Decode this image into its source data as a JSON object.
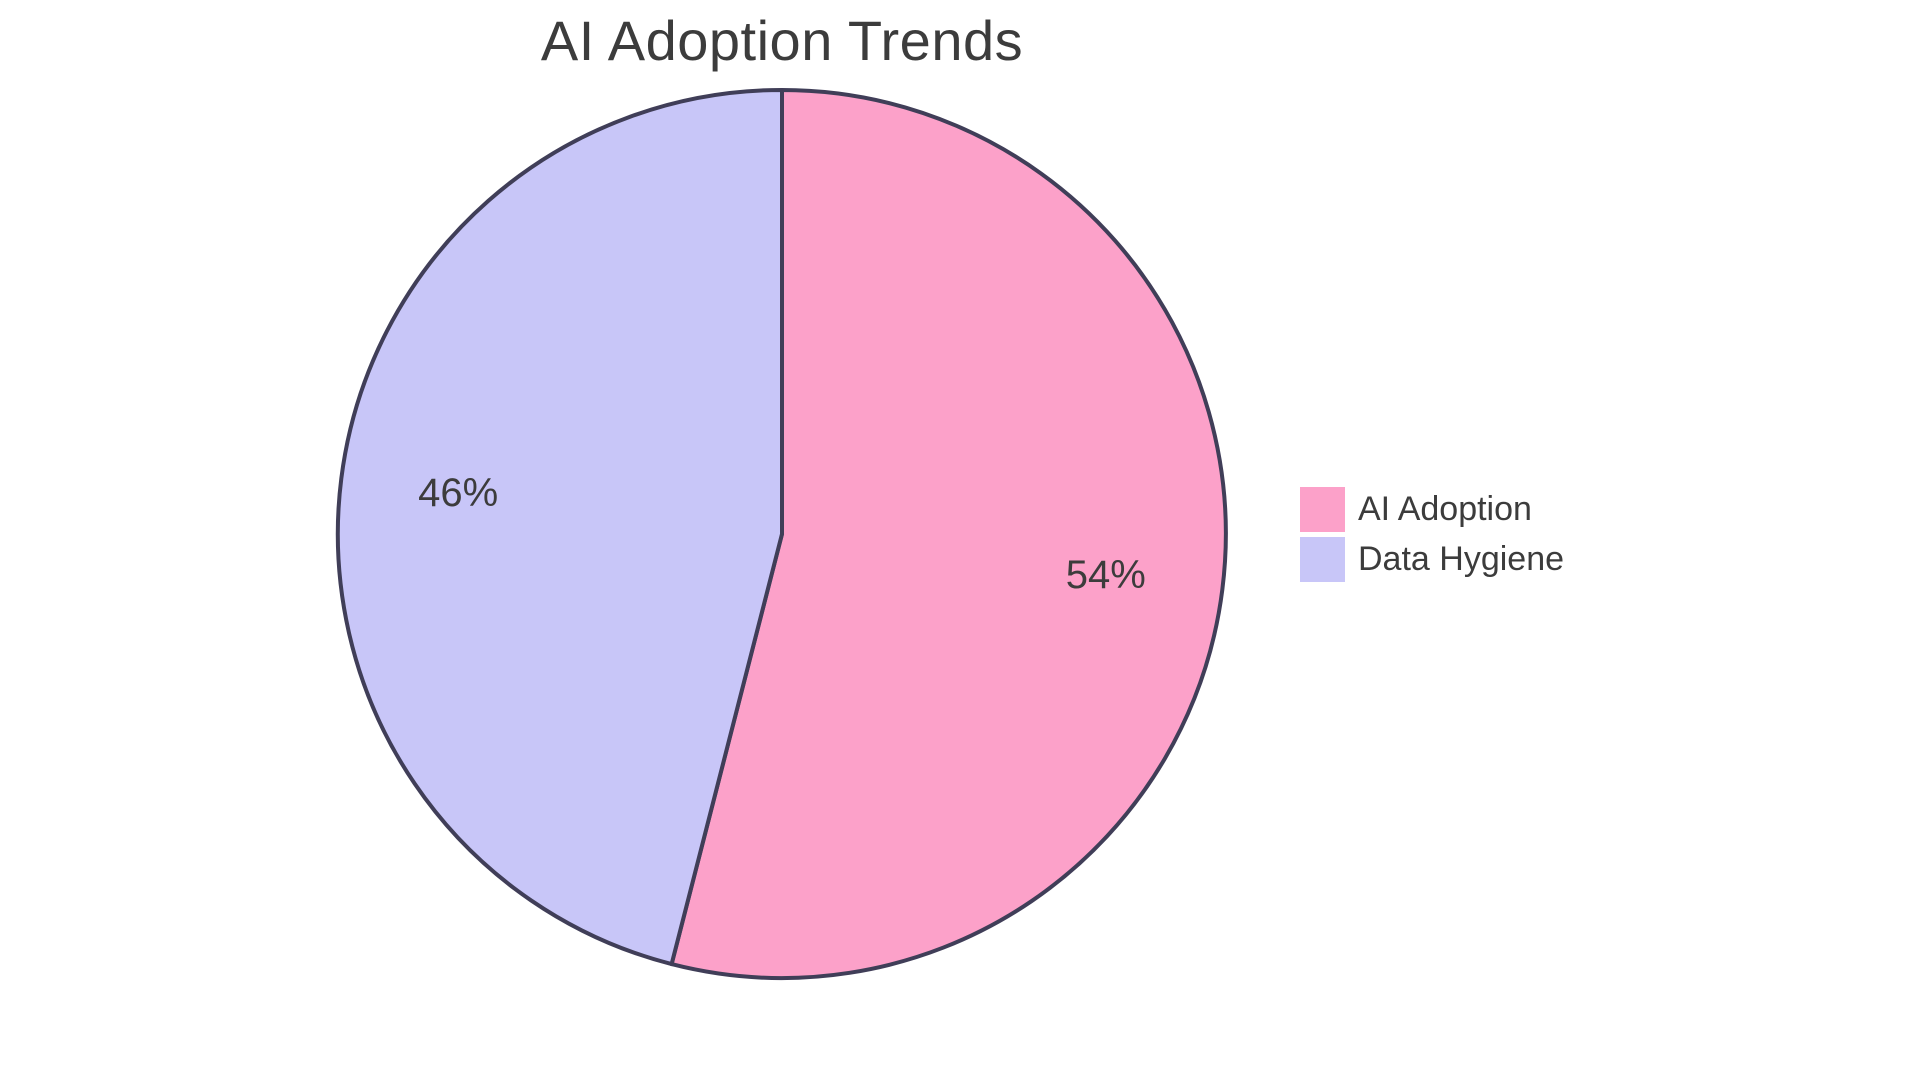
{
  "page": {
    "background": "#ffffff"
  },
  "chart_data": {
    "type": "pie",
    "title": "AI Adoption Trends",
    "title_color": "#3C3C3C",
    "slices": [
      {
        "label": "AI Adoption",
        "value": 54,
        "display": "54%",
        "color": "#FCA1C9"
      },
      {
        "label": "Data Hygiene",
        "value": 46,
        "display": "46%",
        "color": "#C8C6F8"
      }
    ],
    "start_angle_deg": 0,
    "direction": "clockwise",
    "stroke_color": "#403E58",
    "stroke_width": 4,
    "label_color": "#3C3C3C",
    "legend": {
      "position": "right",
      "text_color": "#3C3C3C"
    }
  }
}
